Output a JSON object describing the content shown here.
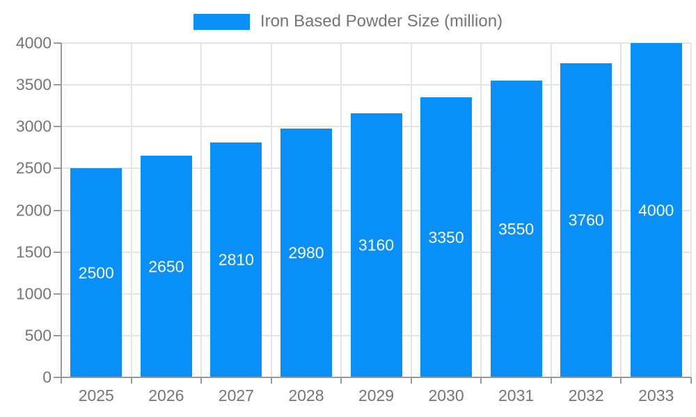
{
  "chart_data": {
    "type": "bar",
    "title": "Iron Based Powder Size (million)",
    "categories": [
      "2025",
      "2026",
      "2027",
      "2028",
      "2029",
      "2030",
      "2031",
      "2032",
      "2033"
    ],
    "values": [
      2500,
      2650,
      2810,
      2980,
      3160,
      3350,
      3550,
      3760,
      4000
    ],
    "value_labels": [
      "2500",
      "2650",
      "2810",
      "2980",
      "3160",
      "3350",
      "3550",
      "3760",
      "4000"
    ],
    "xlabel": "",
    "ylabel": "",
    "ylim": [
      0,
      4000
    ],
    "yticks": [
      0,
      500,
      1000,
      1500,
      2000,
      2500,
      3000,
      3500,
      4000
    ],
    "grid": true,
    "legend_position": "top-center",
    "colors": {
      "bar": "#0990f8",
      "grid": "#e4e4e4",
      "axis": "#9a9a9a",
      "tick_label": "#757575",
      "value_label": "#ffffff",
      "background": "#ffffff"
    }
  },
  "legend": {
    "label": "Iron Based Powder Size (million)"
  }
}
